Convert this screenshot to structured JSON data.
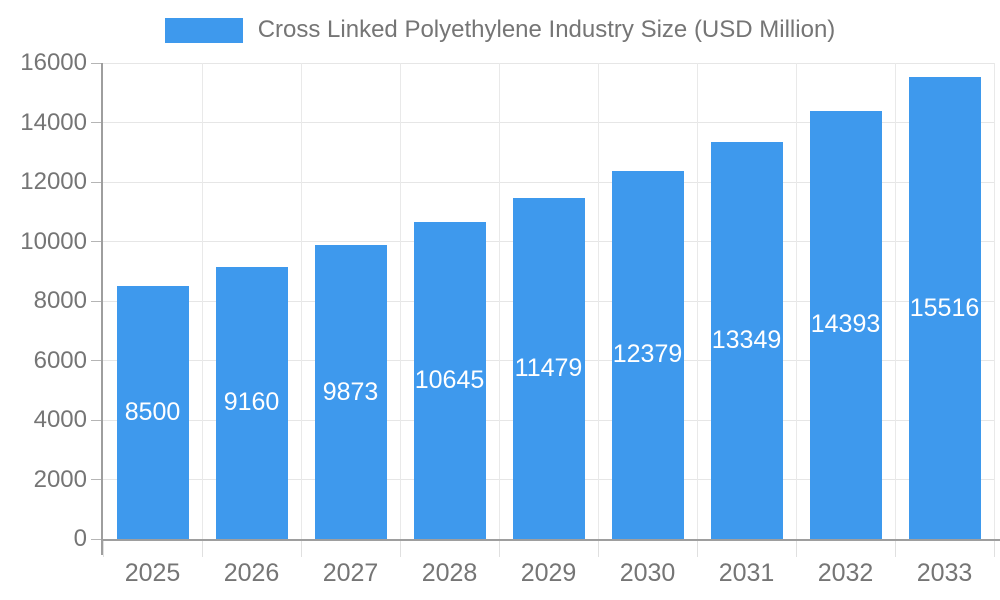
{
  "chart_data": {
    "type": "bar",
    "title": "Cross Linked Polyethylene Industry Size (USD Million)",
    "categories": [
      "2025",
      "2026",
      "2027",
      "2028",
      "2029",
      "2030",
      "2031",
      "2032",
      "2033"
    ],
    "values": [
      8500,
      9160,
      9873,
      10645,
      11479,
      12379,
      13349,
      14393,
      15516
    ],
    "series_name": "Cross Linked Polyethylene Industry Size (USD Million)",
    "xlabel": "",
    "ylabel": "",
    "ylim": [
      0,
      16000
    ],
    "ytick_step": 2000,
    "ytick_labels": [
      "0",
      "2000",
      "4000",
      "6000",
      "8000",
      "10000",
      "12000",
      "14000",
      "16000"
    ],
    "grid": true,
    "legend_position": "top",
    "bar_color": "#3e99ed",
    "bar_value_label_color": "#ffffff",
    "axis_text_color": "#757575",
    "axis_line_color": "#9e9e9e",
    "gridline_color": "#e6e6e6",
    "background_color": "#ffffff"
  }
}
